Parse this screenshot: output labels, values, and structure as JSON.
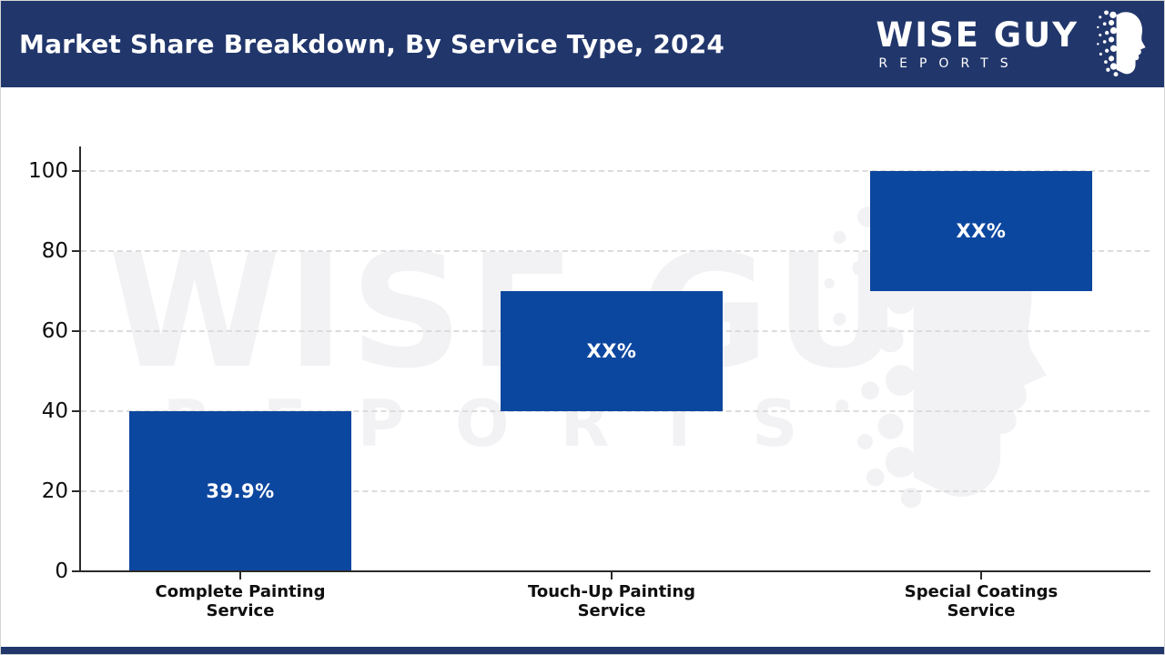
{
  "header": {
    "title": "Market Share Breakdown, By Service Type, 2024",
    "logo": {
      "line1": "WISE GUY",
      "line2": "REPORTS"
    }
  },
  "watermark": {
    "line1": "WISE GUY",
    "line2": "REPORTS"
  },
  "colors": {
    "header_bg": "#21366b",
    "bar": "#0c479f",
    "gridline": "#dcdcdc",
    "axis": "#2b2b2b",
    "watermark": "#f2f2f5",
    "value_label": "#ffffff"
  },
  "chart_data": {
    "type": "bar",
    "subtype": "floating-waterfall",
    "title": "Market Share Breakdown, By Service Type, 2024",
    "categories": [
      {
        "line1": "Complete Painting",
        "line2": "Service"
      },
      {
        "line1": "Touch-Up Painting",
        "line2": "Service"
      },
      {
        "line1": "Special Coatings",
        "line2": "Service"
      }
    ],
    "segments": [
      {
        "category": "Complete Painting Service",
        "start": 0,
        "end": 39.9,
        "label": "39.9%"
      },
      {
        "category": "Touch-Up Painting Service",
        "start": 40,
        "end": 70,
        "label": "XX%"
      },
      {
        "category": "Special Coatings Service",
        "start": 70,
        "end": 100,
        "label": "XX%"
      }
    ],
    "yticks": [
      0,
      20,
      40,
      60,
      80,
      100
    ],
    "ylim": [
      0,
      100
    ],
    "grid": "horizontal-dashed",
    "legend": "none",
    "bar_color": "#0c479f",
    "value_label_color": "#ffffff"
  }
}
